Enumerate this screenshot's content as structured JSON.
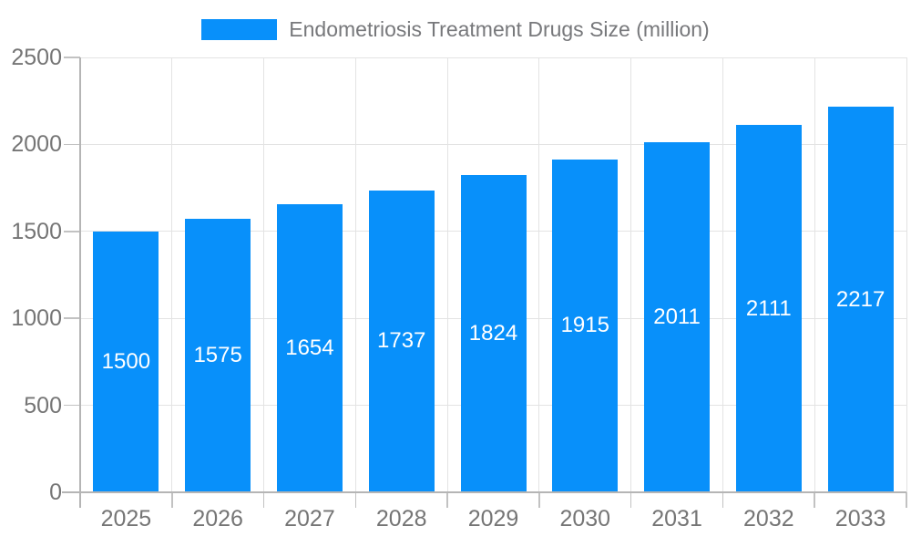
{
  "chart_data": {
    "type": "bar",
    "title": "Endometriosis Treatment Drugs Size (million)",
    "legend_entries": [
      "Endometriosis Treatment Drugs Size (million)"
    ],
    "legend_position": "top-center",
    "categories": [
      "2025",
      "2026",
      "2027",
      "2028",
      "2029",
      "2030",
      "2031",
      "2032",
      "2033"
    ],
    "values": [
      1500,
      1575,
      1654,
      1737,
      1824,
      1915,
      2011,
      2111,
      2217
    ],
    "bar_value_labels": [
      "1500",
      "1575",
      "1654",
      "1737",
      "1824",
      "1915",
      "2011",
      "2111",
      "2217"
    ],
    "xlabel": "",
    "ylabel": "",
    "ylim": [
      0,
      2500
    ],
    "yticks": [
      0,
      500,
      1000,
      1500,
      2000,
      2500
    ],
    "grid": true,
    "colors": {
      "bar": "#0890fa",
      "gridline": "#e3e3e3",
      "axis": "#b5b5b5",
      "tick": "#c2c2c2",
      "tick_label_text": "#757575",
      "legend_text": "#77787b",
      "bar_label_text": "#ffffff",
      "background": "#ffffff"
    }
  }
}
